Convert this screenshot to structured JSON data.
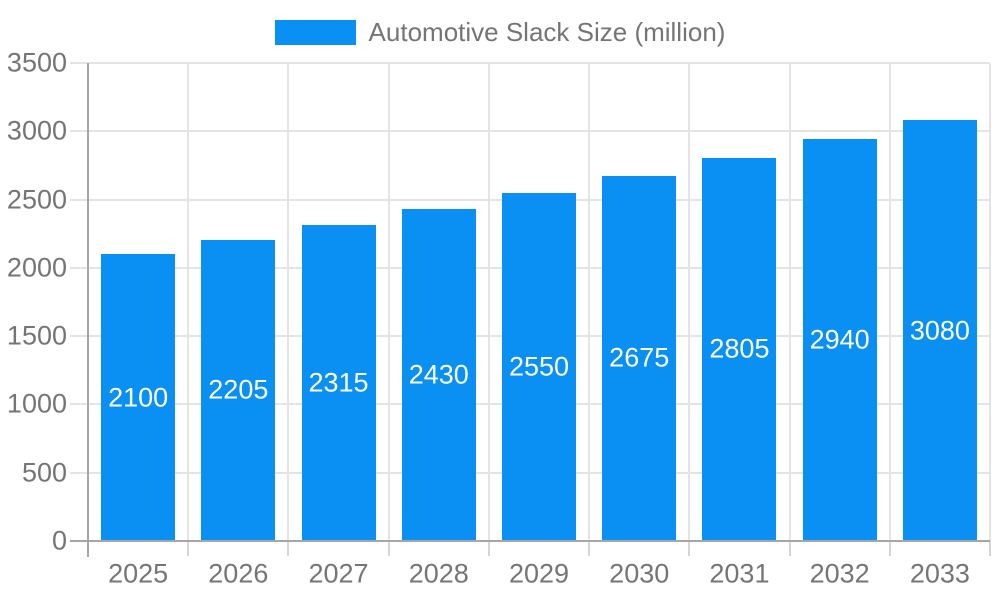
{
  "legend": {
    "label": "Automotive Slack Size (million)"
  },
  "chart_data": {
    "type": "bar",
    "title": "Automotive Slack Size (million)",
    "series_name": "Automotive Slack Size (million)",
    "categories": [
      "2025",
      "2026",
      "2027",
      "2028",
      "2029",
      "2030",
      "2031",
      "2032",
      "2033"
    ],
    "values": [
      2100,
      2205,
      2315,
      2430,
      2550,
      2675,
      2805,
      2940,
      3080
    ],
    "bar_value_labels": [
      "2100",
      "2205",
      "2315",
      "2430",
      "2550",
      "2675",
      "2805",
      "2940",
      "3080"
    ],
    "xlabel": "",
    "ylabel": "",
    "ylim": [
      0,
      3500
    ],
    "yticks": [
      0,
      500,
      1000,
      1500,
      2000,
      2500,
      3000,
      3500
    ],
    "ytick_labels": [
      "0",
      "500",
      "1000",
      "1500",
      "2000",
      "2500",
      "3000",
      "3500"
    ],
    "grid": true,
    "legend_position": "top",
    "bar_labels_position": "center-inside"
  },
  "colors": {
    "bar": "#0A8FF2",
    "bar_label": "#FFFFFF",
    "axis_text": "#757575",
    "legend_text": "#757575",
    "gridline": "#E4E4E4",
    "axis_line": "#A6A6A6",
    "tick": "#D6D6D6",
    "background": "#FFFFFF"
  }
}
